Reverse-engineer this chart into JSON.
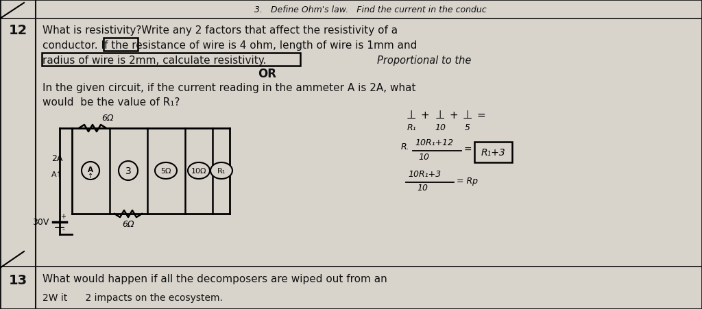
{
  "bg_color": "#d8d4cc",
  "border_color": "#111111",
  "line_color": "#111111",
  "q12_num": "12",
  "q13_num": "13",
  "top_text": "3.   Define Ohm's law.   Find the current in the conduc",
  "q12_line1": "What is resistivity?Write any 2 factors that affect the resistivity of a",
  "q12_line2": "conductor. If the resistance of wire is 4 ohm, length of wire is 1mm and",
  "q12_line3": "radius of wire is 2mm, calculate resistivity.",
  "q12_handwritten": "Proportional to the",
  "or_text": "OR",
  "q12_circuit_line1": "In the given circuit, if the current reading in the ammeter A is 2A, what",
  "q12_circuit_line2": "would  be the value of R₁?",
  "q13_line1": "What would happen if all the decomposers are wiped out from an",
  "q13_line2": "2W it      2 impacts on the ecosystem."
}
